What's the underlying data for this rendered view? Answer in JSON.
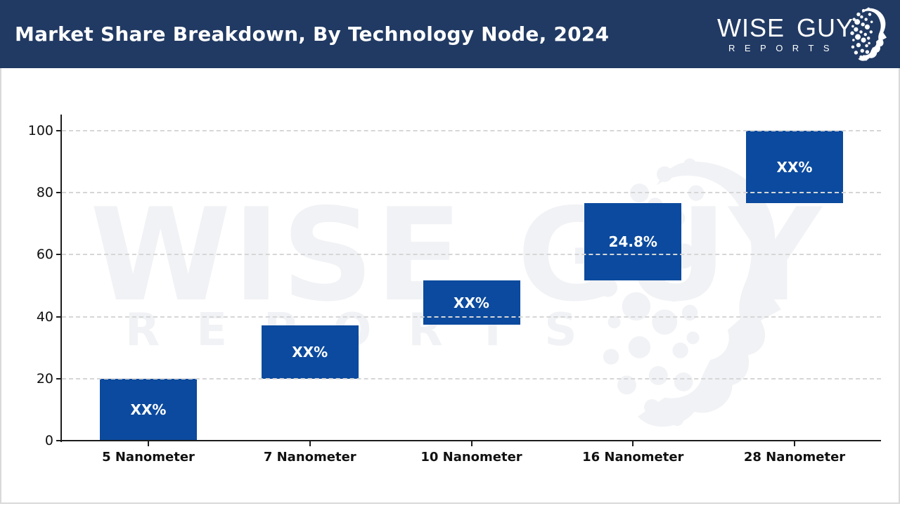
{
  "header": {
    "title": "Market Share Breakdown, By Technology Node, 2024",
    "background_color": "#213a63",
    "logo": {
      "wordmark": "WISE GUY",
      "subtitle": "REPORTS"
    }
  },
  "watermark": {
    "wordmark": "WISE GUY",
    "subtitle": "REPORTS"
  },
  "chart_data": {
    "type": "bar",
    "variant": "waterfall",
    "title": "Market Share Breakdown, By Technology Node, 2024",
    "categories": [
      "5 Nanometer",
      "7 Nanometer",
      "10 Nanometer",
      "16 Nanometer",
      "28 Nanometer"
    ],
    "bars": [
      {
        "category": "5 Nanometer",
        "start": 0,
        "end": 20.0,
        "value": 20.0,
        "label": "XX%"
      },
      {
        "category": "7 Nanometer",
        "start": 20.0,
        "end": 37.3,
        "value": 17.3,
        "label": "XX%"
      },
      {
        "category": "10 Nanometer",
        "start": 37.3,
        "end": 51.8,
        "value": 14.5,
        "label": "XX%"
      },
      {
        "category": "16 Nanometer",
        "start": 51.8,
        "end": 76.6,
        "value": 24.8,
        "label": "24.8%"
      },
      {
        "category": "28 Nanometer",
        "start": 76.6,
        "end": 100.0,
        "value": 23.4,
        "label": "XX%"
      }
    ],
    "xlabel": "",
    "ylabel": "",
    "ylim": [
      0,
      100
    ],
    "yticks": [
      0,
      20,
      40,
      60,
      80,
      100
    ],
    "grid": "horizontal-dashed",
    "legend": "none",
    "colors": {
      "bar": "#0b4a9e",
      "bar_label": "#ffffff",
      "gridline": "#d6d6d6",
      "axis": "#1c1c1c",
      "tick_label": "#111111"
    }
  }
}
